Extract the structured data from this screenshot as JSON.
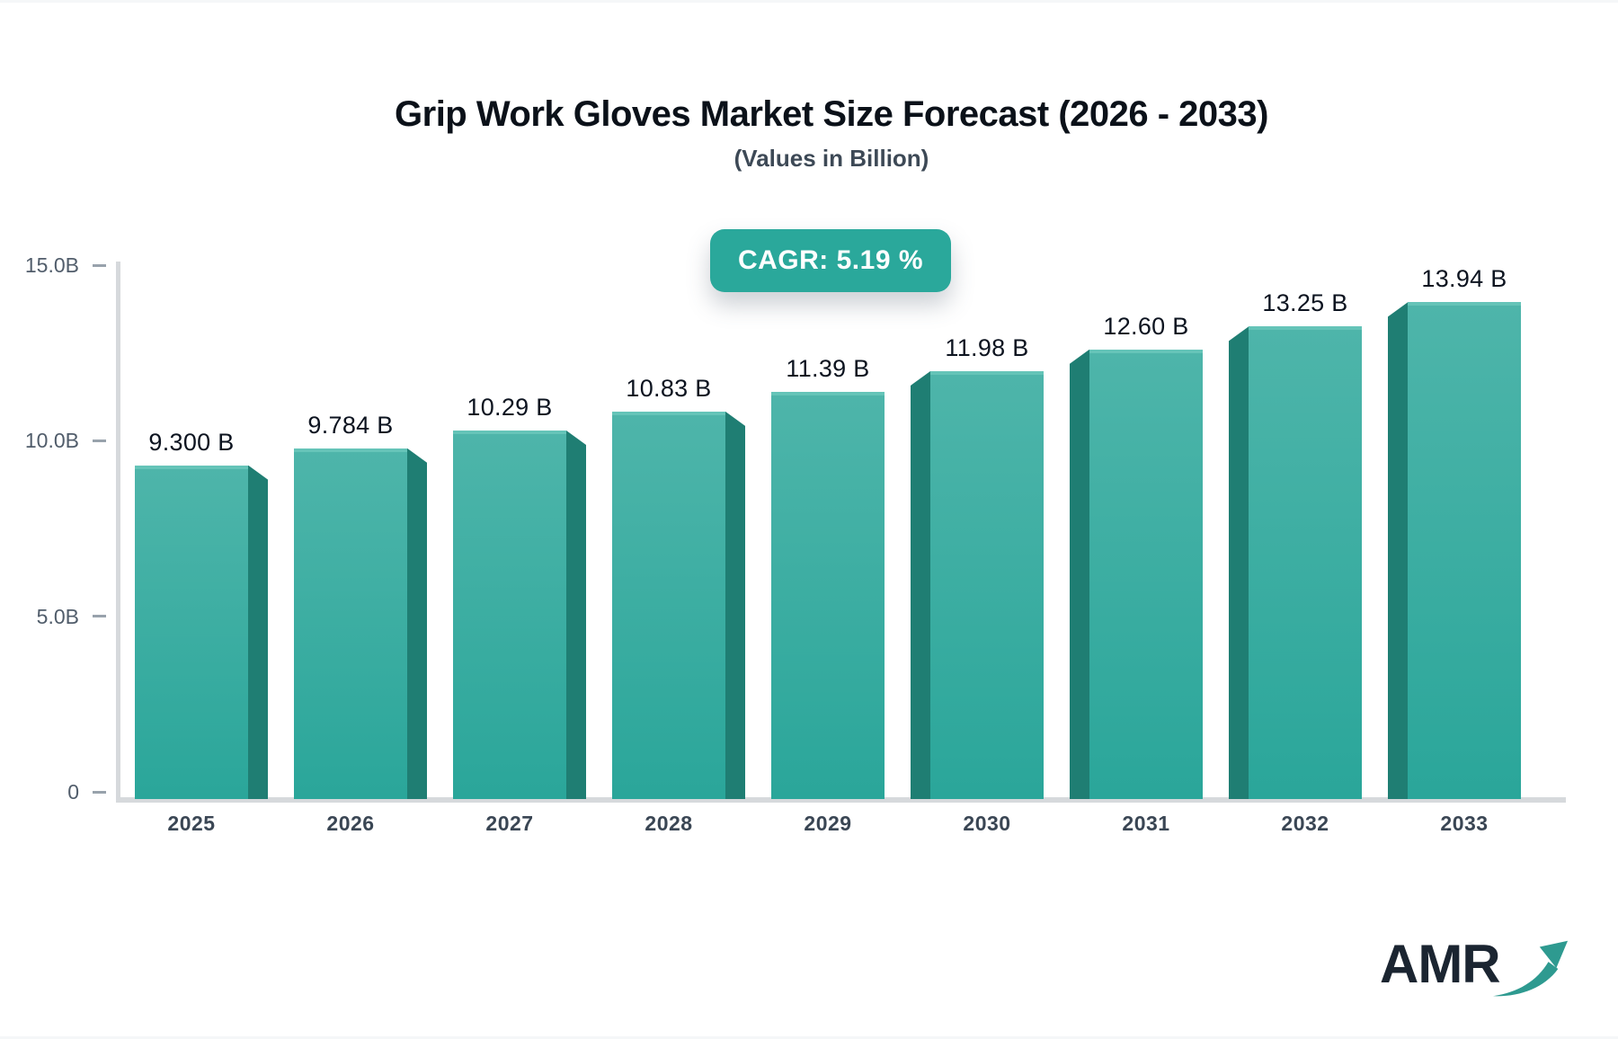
{
  "header": {
    "title": "Grip Work Gloves Market Size Forecast (2026 - 2033)",
    "subtitle": "(Values in Billion)"
  },
  "badge": {
    "label": "CAGR: 5.19 %",
    "background_color": "#2aa89b",
    "text_color": "#ffffff"
  },
  "chart_data": {
    "type": "bar",
    "title": "Grip Work Gloves Market Size Forecast (2026 - 2033)",
    "subtitle": "(Values in Billion)",
    "categories": [
      "2025",
      "2026",
      "2027",
      "2028",
      "2029",
      "2030",
      "2031",
      "2032",
      "2033"
    ],
    "values": [
      9.3,
      9.784,
      10.29,
      10.83,
      11.39,
      11.98,
      12.6,
      13.25,
      13.94
    ],
    "value_labels": [
      "9.300 B",
      "9.784 B",
      "10.29 B",
      "10.83 B",
      "11.39 B",
      "11.98 B",
      "12.60 B",
      "13.25 B",
      "13.94 B"
    ],
    "xlabel": "",
    "ylabel": "",
    "ylim": [
      0,
      15
    ],
    "yticks": [
      {
        "value": 15,
        "label": "15.0B"
      },
      {
        "value": 10,
        "label": "10.0B"
      },
      {
        "value": 5,
        "label": "5.0B"
      },
      {
        "value": 0,
        "label": "0"
      }
    ],
    "grid": false,
    "legend": "none",
    "bar_style": "3d-perspective",
    "colors": {
      "face_top": "#4eb5aa",
      "face_bottom": "#2aa69a",
      "face_highlight": "#65c4b8",
      "side": "#1f7e73",
      "axis": "#d6d9dc",
      "tick": "#98a2ac",
      "tick_text": "#515d6b",
      "category_text": "#3a4654",
      "value_text": "#0d1420"
    }
  },
  "logo": {
    "text": "AMR",
    "icon": "growth-arrow-icon",
    "text_color": "#1b2531",
    "arrow_color": "#2e9a90"
  }
}
